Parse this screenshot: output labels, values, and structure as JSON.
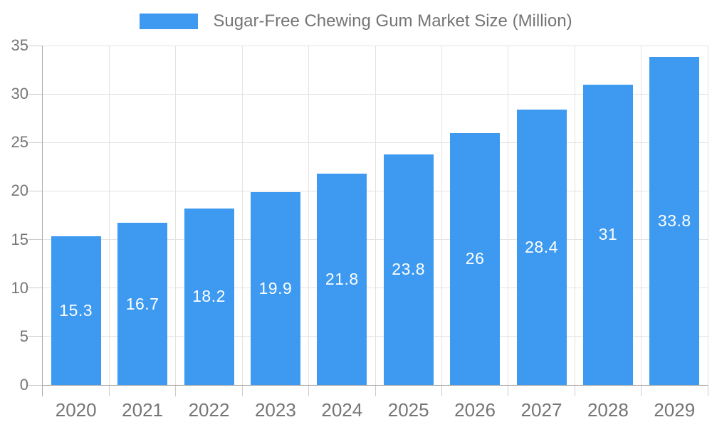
{
  "chart_data": {
    "type": "bar",
    "title": "Sugar-Free Chewing Gum Market Size (Million)",
    "legend_position": "top-center",
    "categories": [
      "2020",
      "2021",
      "2022",
      "2023",
      "2024",
      "2025",
      "2026",
      "2027",
      "2028",
      "2029"
    ],
    "series": [
      {
        "name": "Sugar-Free Chewing Gum Market Size (Million)",
        "values": [
          15.3,
          16.7,
          18.2,
          19.9,
          21.8,
          23.8,
          26,
          28.4,
          31,
          33.8
        ]
      }
    ],
    "value_labels": [
      "15.3",
      "16.7",
      "18.2",
      "19.9",
      "21.8",
      "23.8",
      "26",
      "28.4",
      "31",
      "33.8"
    ],
    "xlabel": "",
    "ylabel": "",
    "ylim": [
      0,
      35
    ],
    "ytick_step": 5,
    "yticks": [
      0,
      5,
      10,
      15,
      20,
      25,
      30,
      35
    ],
    "grid": "on",
    "colors": {
      "bar": "#3D9AF0",
      "value_label": "#ffffff",
      "axis_text": "#757575",
      "grid_line": "#e3e3e3",
      "tick_line": "#cccccc",
      "axis_line": "#aaaaaa",
      "background": "#ffffff"
    }
  }
}
